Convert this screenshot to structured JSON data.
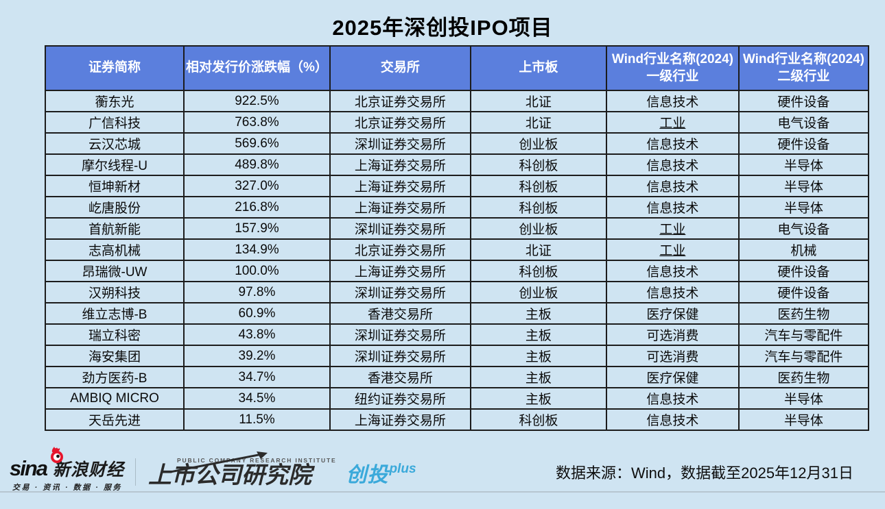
{
  "title": "2025年深创投IPO项目",
  "table": {
    "headers": [
      {
        "line1": "证券简称"
      },
      {
        "line1": "相对发行价涨跌幅（%）"
      },
      {
        "line1": "交易所"
      },
      {
        "line1": "上市板"
      },
      {
        "line1": "Wind行业名称(2024)",
        "line2": "一级行业"
      },
      {
        "line1": "Wind行业名称(2024)",
        "line2": "二级行业"
      }
    ],
    "rows": [
      [
        "蘅东光",
        "922.5%",
        "北京证券交易所",
        "北证",
        "信息技术",
        "硬件设备"
      ],
      [
        "广信科技",
        "763.8%",
        "北京证券交易所",
        "北证",
        "工业",
        "电气设备"
      ],
      [
        "云汉芯城",
        "569.6%",
        "深圳证券交易所",
        "创业板",
        "信息技术",
        "硬件设备"
      ],
      [
        "摩尔线程-U",
        "489.8%",
        "上海证券交易所",
        "科创板",
        "信息技术",
        "半导体"
      ],
      [
        "恒坤新材",
        "327.0%",
        "上海证券交易所",
        "科创板",
        "信息技术",
        "半导体"
      ],
      [
        "屹唐股份",
        "216.8%",
        "上海证券交易所",
        "科创板",
        "信息技术",
        "半导体"
      ],
      [
        "首航新能",
        "157.9%",
        "深圳证券交易所",
        "创业板",
        "工业",
        "电气设备"
      ],
      [
        "志高机械",
        "134.9%",
        "北京证券交易所",
        "北证",
        "工业",
        "机械"
      ],
      [
        "昂瑞微-UW",
        "100.0%",
        "上海证券交易所",
        "科创板",
        "信息技术",
        "硬件设备"
      ],
      [
        "汉朔科技",
        "97.8%",
        "深圳证券交易所",
        "创业板",
        "信息技术",
        "硬件设备"
      ],
      [
        "维立志博-B",
        "60.9%",
        "香港交易所",
        "主板",
        "医疗保健",
        "医药生物"
      ],
      [
        "瑞立科密",
        "43.8%",
        "深圳证券交易所",
        "主板",
        "可选消费",
        "汽车与零配件"
      ],
      [
        "海安集团",
        "39.2%",
        "深圳证券交易所",
        "主板",
        "可选消费",
        "汽车与零配件"
      ],
      [
        "劲方医药-B",
        "34.7%",
        "香港交易所",
        "主板",
        "医疗保健",
        "医药生物"
      ],
      [
        "AMBIQ MICRO",
        "34.5%",
        "纽约证券交易所",
        "主板",
        "信息技术",
        "半导体"
      ],
      [
        "天岳先进",
        "11.5%",
        "上海证券交易所",
        "科创板",
        "信息技术",
        "半导体"
      ]
    ],
    "underline_positions": [
      [
        1,
        4
      ],
      [
        6,
        4
      ],
      [
        7,
        4
      ]
    ]
  },
  "footer": {
    "sina": {
      "logo_text": "sina",
      "brand": "新浪财经",
      "tagline": "交易 · 资讯 · 数据 · 服务"
    },
    "institute": {
      "en": "PUBLIC COMPANY RESEARCH INSTITUTE",
      "cn": "上市公司研究院",
      "sub_brand": "创投",
      "sub_brand_suffix": "plus"
    },
    "source_note": "数据来源：Wind，数据截至2025年12月31日"
  },
  "colors": {
    "page_bg": "#cfe4f2",
    "header_bg": "#5b7fdd",
    "header_text": "#ffffff",
    "cell_text": "#0a0a0a",
    "border": "#1c1c1c",
    "accent_blue": "#3aa9da",
    "sina_red": "#e6162d"
  },
  "chart_data": {
    "type": "table",
    "title": "2025年深创投IPO项目",
    "columns": [
      "证券简称",
      "相对发行价涨跌幅（%）",
      "交易所",
      "上市板",
      "Wind行业名称(2024)一级行业",
      "Wind行业名称(2024)二级行业"
    ],
    "rows": [
      [
        "蘅东光",
        922.5,
        "北京证券交易所",
        "北证",
        "信息技术",
        "硬件设备"
      ],
      [
        "广信科技",
        763.8,
        "北京证券交易所",
        "北证",
        "工业",
        "电气设备"
      ],
      [
        "云汉芯城",
        569.6,
        "深圳证券交易所",
        "创业板",
        "信息技术",
        "硬件设备"
      ],
      [
        "摩尔线程-U",
        489.8,
        "上海证券交易所",
        "科创板",
        "信息技术",
        "半导体"
      ],
      [
        "恒坤新材",
        327.0,
        "上海证券交易所",
        "科创板",
        "信息技术",
        "半导体"
      ],
      [
        "屹唐股份",
        216.8,
        "上海证券交易所",
        "科创板",
        "信息技术",
        "半导体"
      ],
      [
        "首航新能",
        157.9,
        "深圳证券交易所",
        "创业板",
        "工业",
        "电气设备"
      ],
      [
        "志高机械",
        134.9,
        "北京证券交易所",
        "北证",
        "工业",
        "机械"
      ],
      [
        "昂瑞微-UW",
        100.0,
        "上海证券交易所",
        "科创板",
        "信息技术",
        "硬件设备"
      ],
      [
        "汉朔科技",
        97.8,
        "深圳证券交易所",
        "创业板",
        "信息技术",
        "硬件设备"
      ],
      [
        "维立志博-B",
        60.9,
        "香港交易所",
        "主板",
        "医疗保健",
        "医药生物"
      ],
      [
        "瑞立科密",
        43.8,
        "深圳证券交易所",
        "主板",
        "可选消费",
        "汽车与零配件"
      ],
      [
        "海安集团",
        39.2,
        "深圳证券交易所",
        "主板",
        "可选消费",
        "汽车与零配件"
      ],
      [
        "劲方医药-B",
        34.7,
        "香港交易所",
        "主板",
        "医疗保健",
        "医药生物"
      ],
      [
        "AMBIQ MICRO",
        34.5,
        "纽约证券交易所",
        "主板",
        "信息技术",
        "半导体"
      ],
      [
        "天岳先进",
        11.5,
        "上海证券交易所",
        "科创板",
        "信息技术",
        "半导体"
      ]
    ],
    "value_column_unit": "%",
    "source": "数据来源：Wind，数据截至2025年12月31日"
  }
}
